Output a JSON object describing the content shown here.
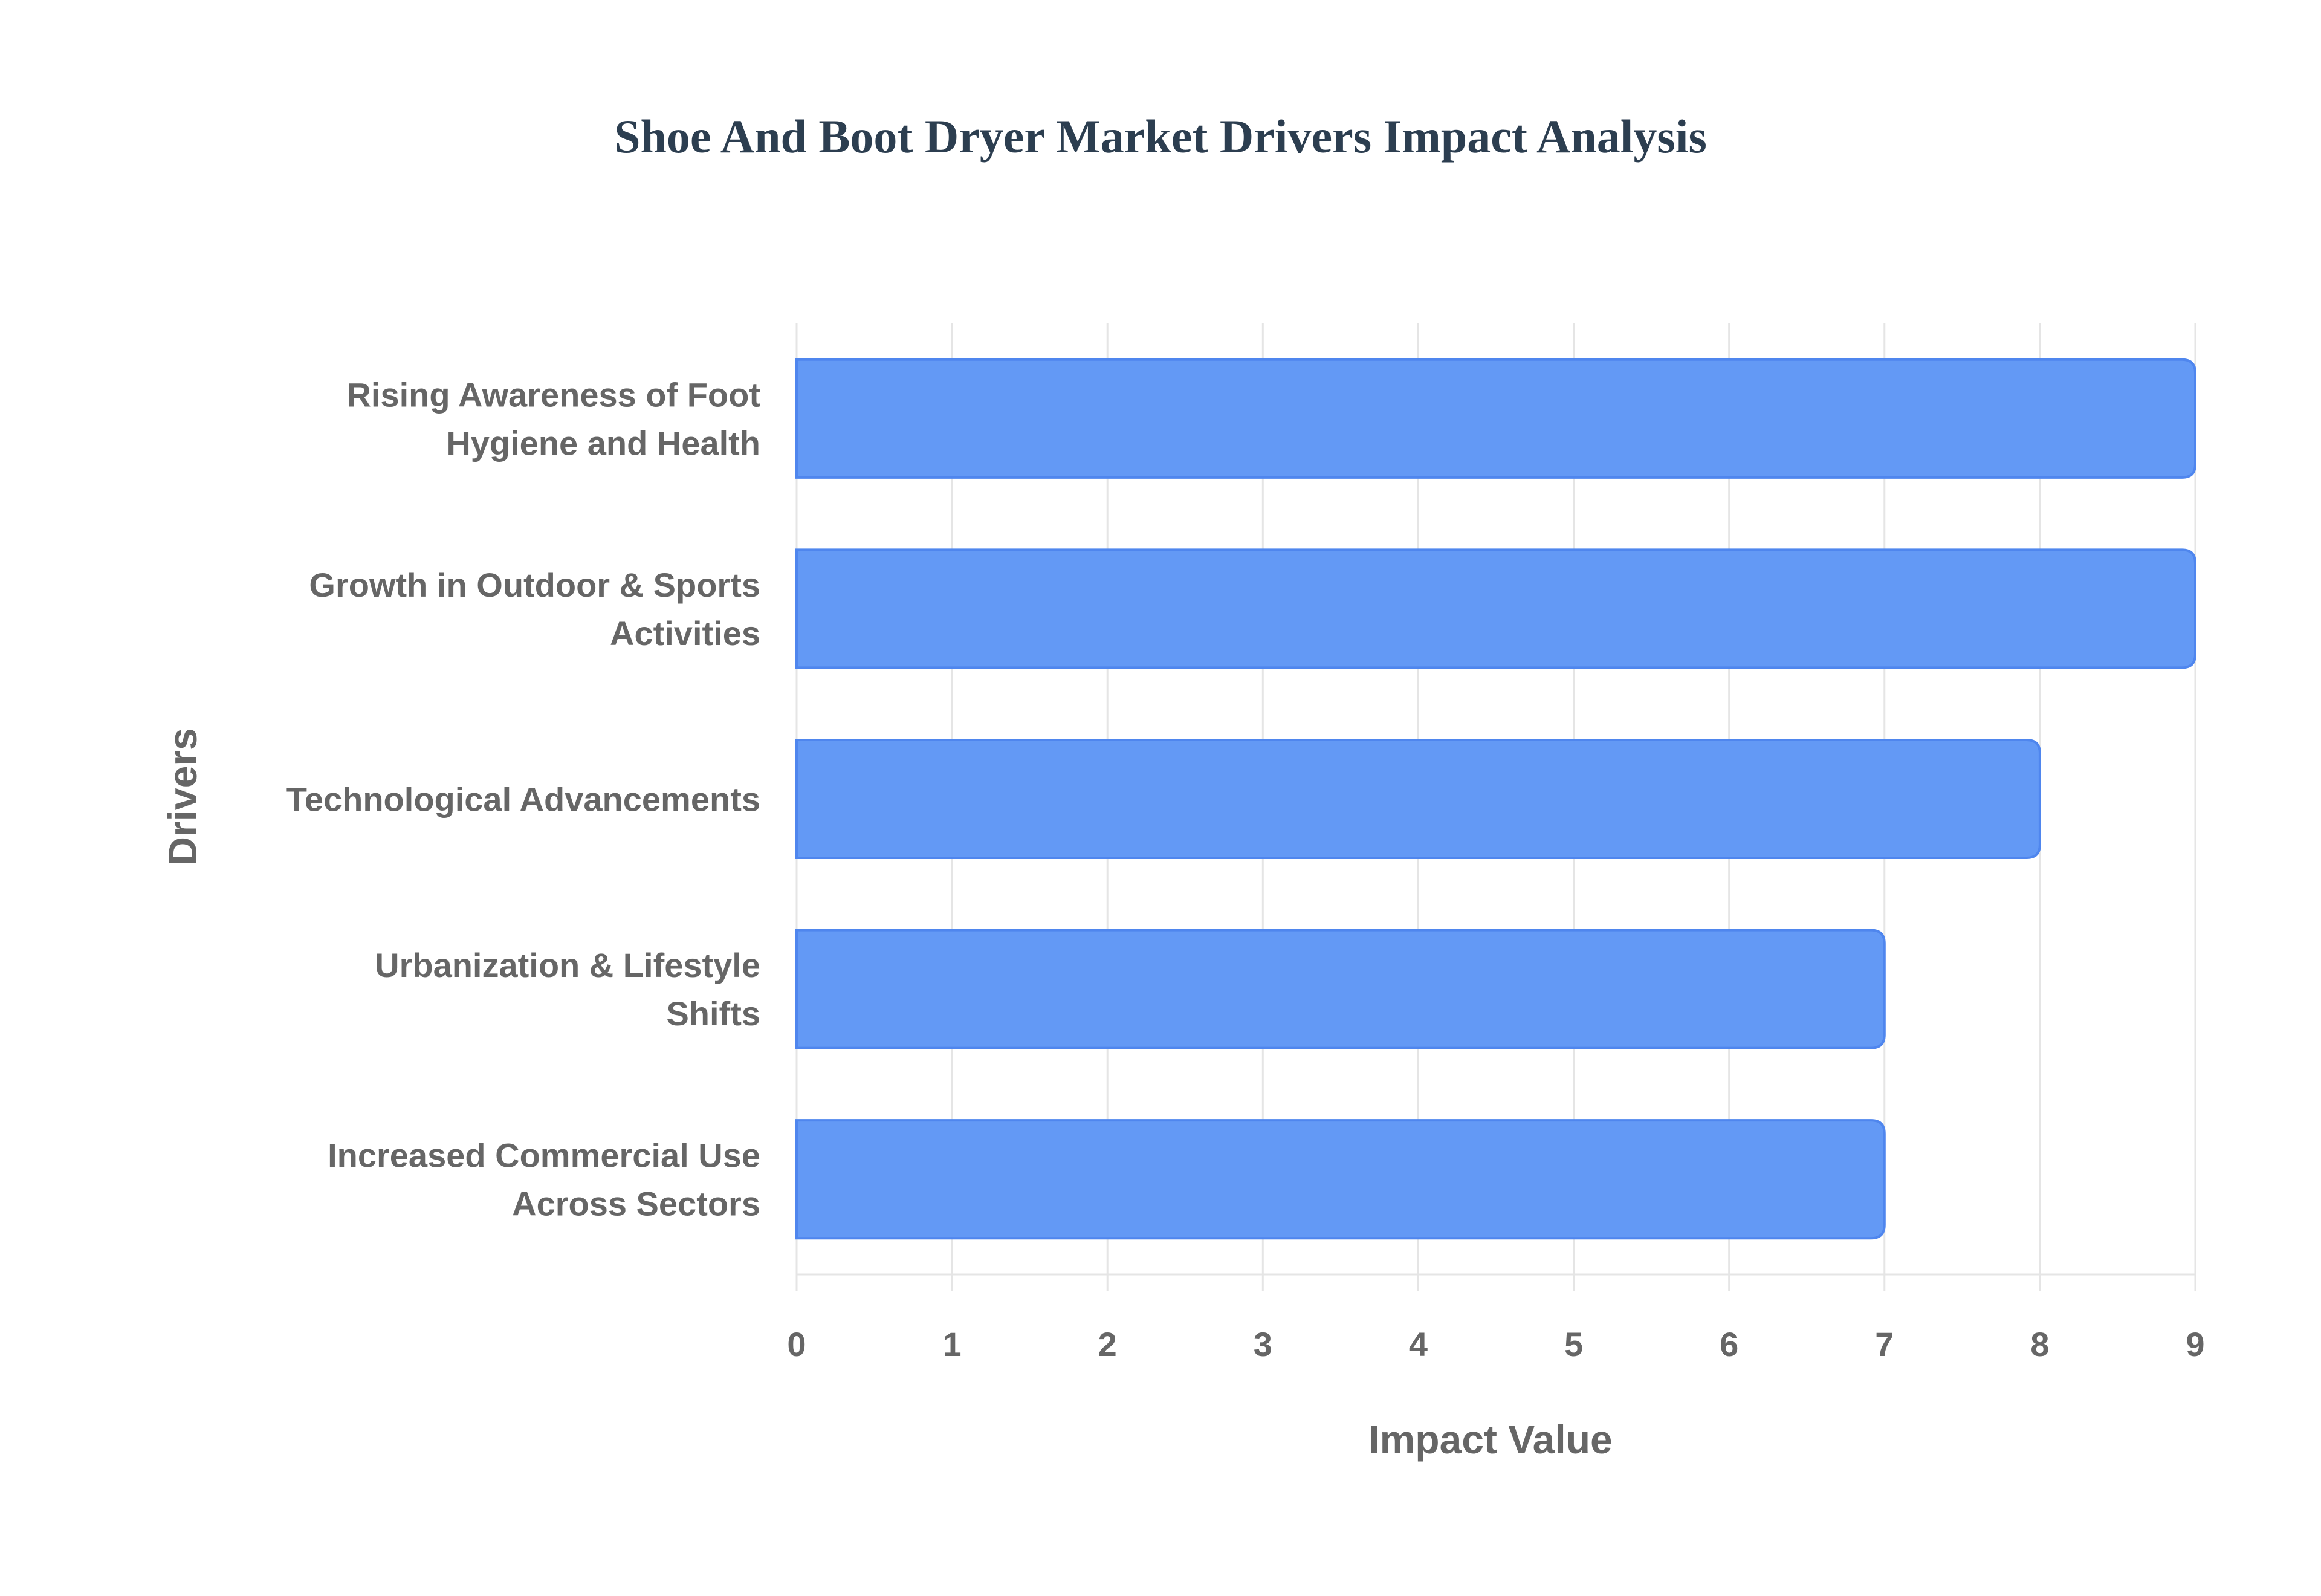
{
  "chart_data": {
    "type": "bar",
    "orientation": "horizontal",
    "title": "Shoe And Boot Dryer Market Drivers Impact Analysis",
    "xlabel": "Impact Value",
    "ylabel": "Drivers",
    "categories": [
      [
        "Rising Awareness of Foot",
        "Hygiene and Health"
      ],
      [
        "Growth in Outdoor & Sports",
        "Activities"
      ],
      [
        "Technological Advancements"
      ],
      [
        "Urbanization & Lifestyle",
        "Shifts"
      ],
      [
        "Increased Commercial Use",
        "Across Sectors"
      ]
    ],
    "values": [
      9,
      9,
      8,
      7,
      7
    ],
    "xlim": [
      0,
      9
    ],
    "xticks": [
      "0",
      "1",
      "2",
      "3",
      "4",
      "5",
      "6",
      "7",
      "8",
      "9"
    ],
    "grid": true,
    "legend": "none",
    "colors": {
      "bar_fill": "#6399f5",
      "bar_border": "#4f86ee",
      "title": "#2c3e50",
      "text": "#666666",
      "grid": "#e5e5e5"
    }
  }
}
